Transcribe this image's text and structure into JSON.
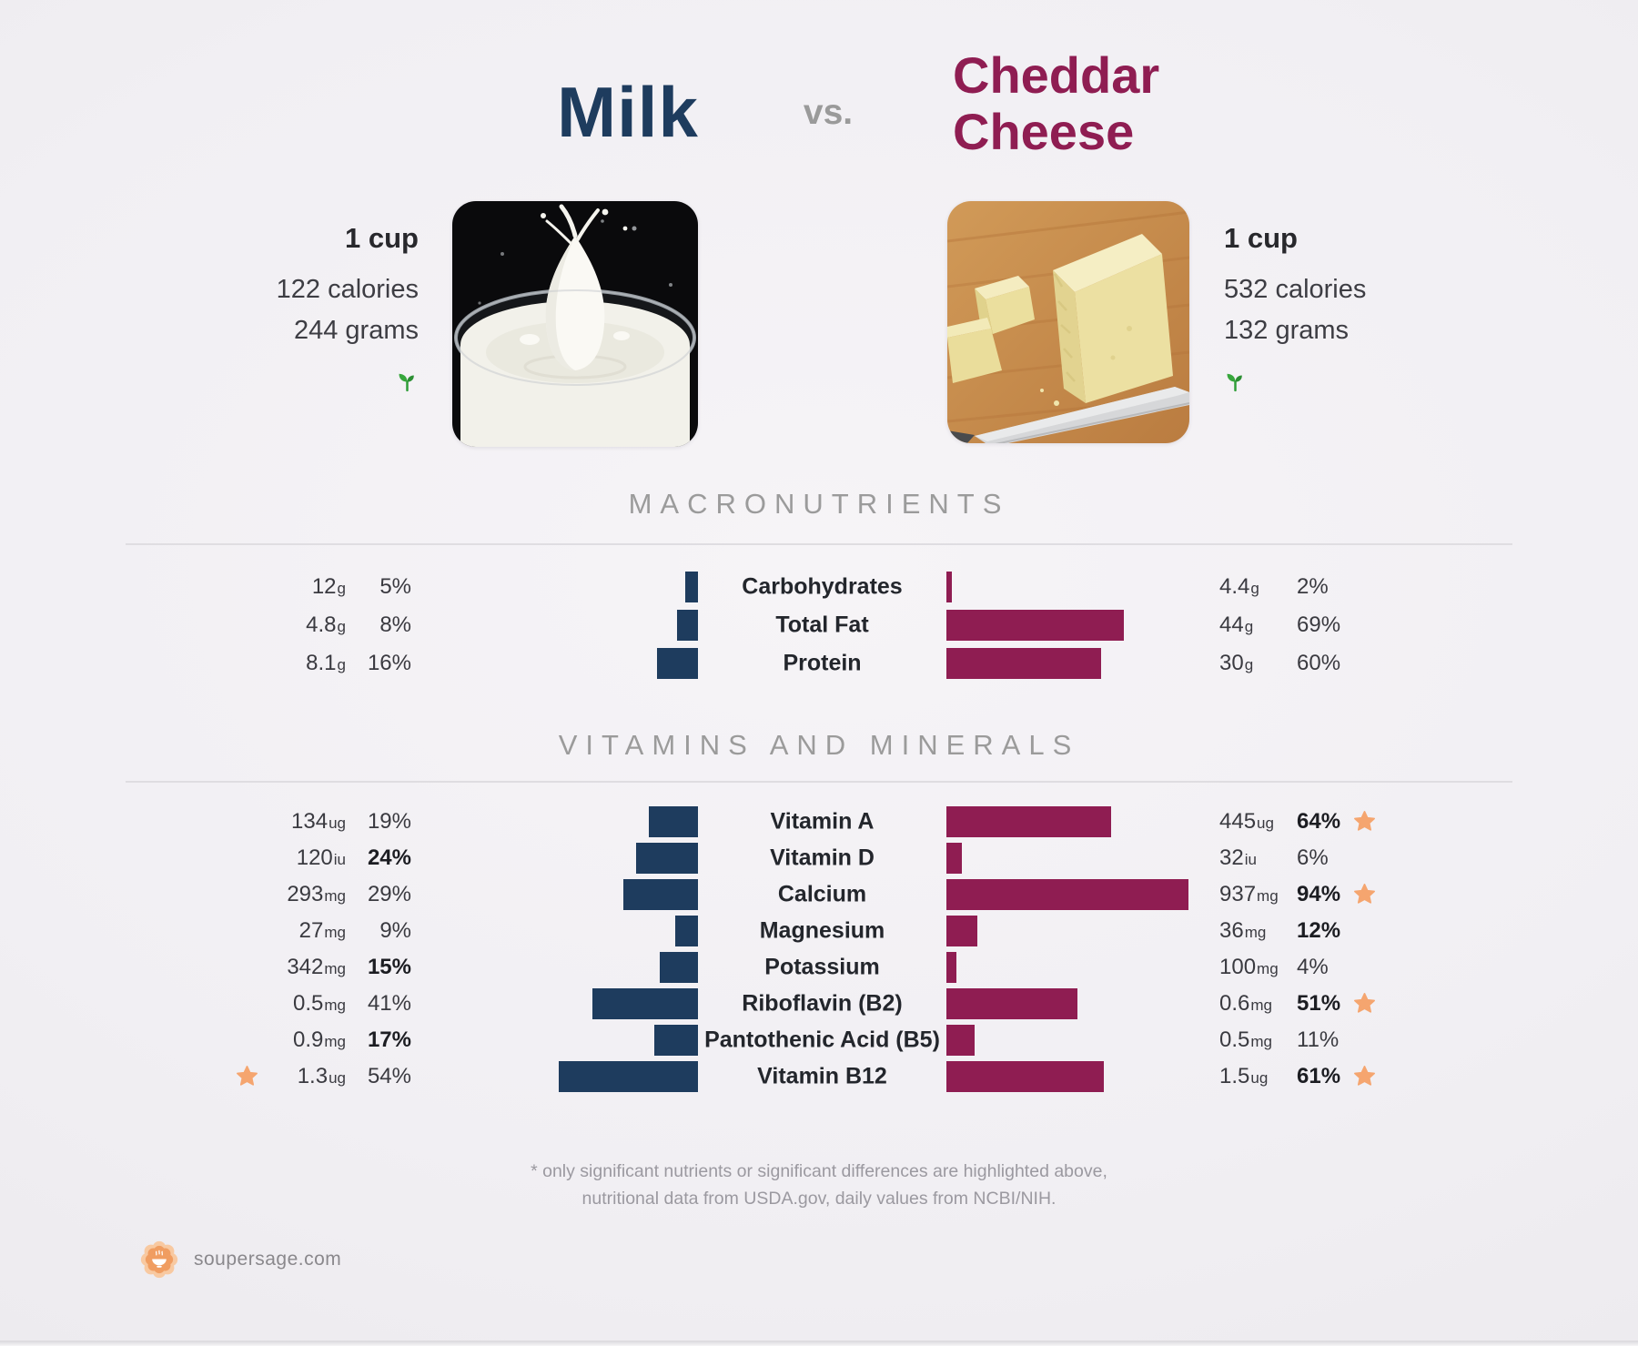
{
  "title": {
    "left": "Milk",
    "vs": "vs.",
    "right_line1": "Cheddar",
    "right_line2": "Cheese"
  },
  "serving_left": {
    "serving": "1 cup",
    "calories": "122 calories",
    "grams": "244 grams"
  },
  "serving_right": {
    "serving": "1 cup",
    "calories": "532 calories",
    "grams": "132 grams"
  },
  "footnote": {
    "line1": "* only significant nutrients or significant differences are highlighted above,",
    "line2": "nutritional data from USDA.gov, daily values from NCBI/NIH."
  },
  "footer": {
    "site": "soupersage.com"
  },
  "colors": {
    "milk": "#1e3c5e",
    "cheese": "#8f1d52",
    "star": "#f5a56f",
    "header_gray": "#9b9b9b"
  },
  "chart_data": {
    "type": "bar",
    "title": "Milk vs. Cheddar Cheese",
    "subtitle": "nutrition per serving, % of daily value",
    "series": [
      {
        "name": "Milk",
        "serving": "1 cup",
        "calories": 122,
        "grams": 244,
        "color": "#1e3c5e",
        "side": "left"
      },
      {
        "name": "Cheddar Cheese",
        "serving": "1 cup",
        "calories": 532,
        "grams": 132,
        "color": "#8f1d52",
        "side": "right"
      }
    ],
    "axis": {
      "unit": "% daily value",
      "max_pct": 100,
      "bars_grow": "outward-from-center-labels"
    },
    "sections": [
      {
        "header": "MACRONUTRIENTS",
        "rows": [
          {
            "label": "Carbohydrates",
            "left": {
              "amount": "12",
              "unit": "g",
              "pct": 5,
              "pct_label": "5%",
              "bold": false,
              "star": false
            },
            "right": {
              "amount": "4.4",
              "unit": "g",
              "pct": 2,
              "pct_label": "2%",
              "bold": false,
              "star": false
            }
          },
          {
            "label": "Total Fat",
            "left": {
              "amount": "4.8",
              "unit": "g",
              "pct": 8,
              "pct_label": "8%",
              "bold": false,
              "star": false
            },
            "right": {
              "amount": "44",
              "unit": "g",
              "pct": 69,
              "pct_label": "69%",
              "bold": false,
              "star": false
            }
          },
          {
            "label": "Protein",
            "left": {
              "amount": "8.1",
              "unit": "g",
              "pct": 16,
              "pct_label": "16%",
              "bold": false,
              "star": false
            },
            "right": {
              "amount": "30",
              "unit": "g",
              "pct": 60,
              "pct_label": "60%",
              "bold": false,
              "star": false
            }
          }
        ]
      },
      {
        "header": "VITAMINS AND MINERALS",
        "rows": [
          {
            "label": "Vitamin A",
            "left": {
              "amount": "134",
              "unit": "ug",
              "pct": 19,
              "pct_label": "19%",
              "bold": false,
              "star": false
            },
            "right": {
              "amount": "445",
              "unit": "ug",
              "pct": 64,
              "pct_label": "64%",
              "bold": true,
              "star": true
            }
          },
          {
            "label": "Vitamin D",
            "left": {
              "amount": "120",
              "unit": "iu",
              "pct": 24,
              "pct_label": "24%",
              "bold": true,
              "star": false
            },
            "right": {
              "amount": "32",
              "unit": "iu",
              "pct": 6,
              "pct_label": "6%",
              "bold": false,
              "star": false
            }
          },
          {
            "label": "Calcium",
            "left": {
              "amount": "293",
              "unit": "mg",
              "pct": 29,
              "pct_label": "29%",
              "bold": false,
              "star": false
            },
            "right": {
              "amount": "937",
              "unit": "mg",
              "pct": 94,
              "pct_label": "94%",
              "bold": true,
              "star": true
            }
          },
          {
            "label": "Magnesium",
            "left": {
              "amount": "27",
              "unit": "mg",
              "pct": 9,
              "pct_label": "9%",
              "bold": false,
              "star": false
            },
            "right": {
              "amount": "36",
              "unit": "mg",
              "pct": 12,
              "pct_label": "12%",
              "bold": true,
              "star": false
            }
          },
          {
            "label": "Potassium",
            "left": {
              "amount": "342",
              "unit": "mg",
              "pct": 15,
              "pct_label": "15%",
              "bold": true,
              "star": false
            },
            "right": {
              "amount": "100",
              "unit": "mg",
              "pct": 4,
              "pct_label": "4%",
              "bold": false,
              "star": false
            }
          },
          {
            "label": "Riboflavin (B2)",
            "left": {
              "amount": "0.5",
              "unit": "mg",
              "pct": 41,
              "pct_label": "41%",
              "bold": false,
              "star": false
            },
            "right": {
              "amount": "0.6",
              "unit": "mg",
              "pct": 51,
              "pct_label": "51%",
              "bold": true,
              "star": true
            }
          },
          {
            "label": "Pantothenic Acid (B5)",
            "left": {
              "amount": "0.9",
              "unit": "mg",
              "pct": 17,
              "pct_label": "17%",
              "bold": true,
              "star": false
            },
            "right": {
              "amount": "0.5",
              "unit": "mg",
              "pct": 11,
              "pct_label": "11%",
              "bold": false,
              "star": false
            }
          },
          {
            "label": "Vitamin B12",
            "left": {
              "amount": "1.3",
              "unit": "ug",
              "pct": 54,
              "pct_label": "54%",
              "bold": false,
              "star": true
            },
            "right": {
              "amount": "1.5",
              "unit": "ug",
              "pct": 61,
              "pct_label": "61%",
              "bold": true,
              "star": true
            }
          }
        ]
      }
    ]
  }
}
